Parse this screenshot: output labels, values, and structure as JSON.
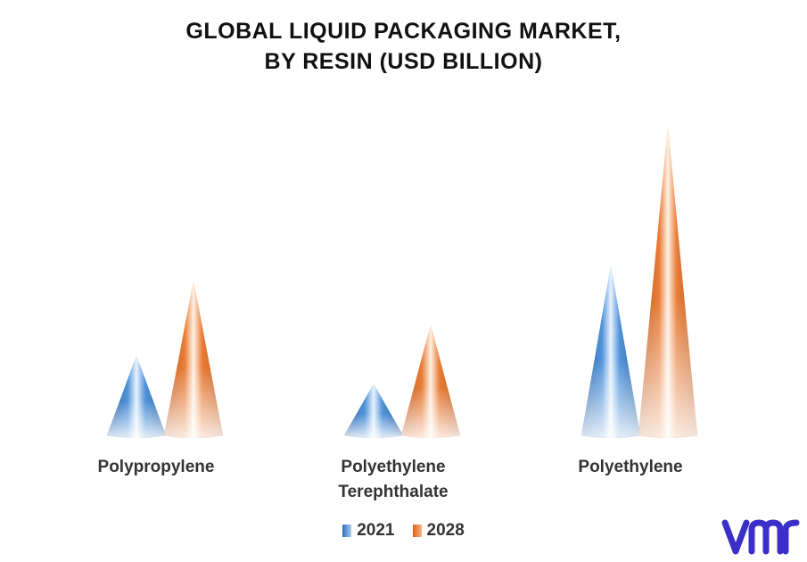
{
  "title_line1": "GLOBAL LIQUID PACKAGING MARKET,",
  "title_line2": "BY RESIN (USD BILLION)",
  "colors": {
    "s2021": "#3d7fd0",
    "s2028": "#e8772e",
    "logo": "#3b2fc9"
  },
  "chart_data": {
    "type": "bar",
    "title": "GLOBAL LIQUID PACKAGING MARKET, BY RESIN (USD BILLION)",
    "categories": [
      [
        "Polypropylene"
      ],
      [
        "Polyethylene",
        "Terephthalate"
      ],
      [
        "Polyethylene"
      ]
    ],
    "series": [
      {
        "name": "2021",
        "values": [
          3.1,
          2.0,
          6.6
        ]
      },
      {
        "name": "2028",
        "values": [
          6.0,
          4.3,
          12.0
        ]
      }
    ],
    "ylim": [
      0,
      12
    ],
    "grid": false,
    "legend": "bottom"
  },
  "logo_icon": "vmr-logo-icon"
}
